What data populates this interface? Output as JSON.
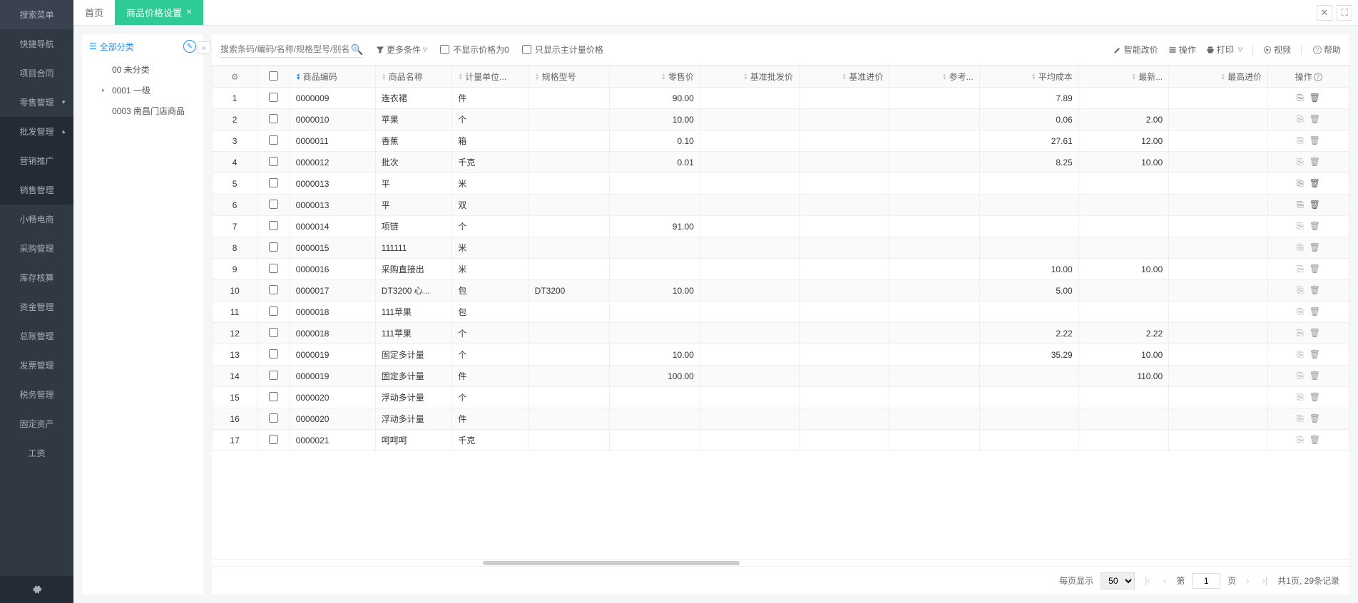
{
  "sidebar": {
    "items": [
      {
        "label": "搜索菜单",
        "caret": ""
      },
      {
        "label": "快捷导航",
        "caret": ""
      },
      {
        "label": "项目合同",
        "caret": ""
      },
      {
        "label": "零售管理",
        "caret": "▼"
      },
      {
        "label": "批发管理",
        "caret": "▲",
        "expanded": true,
        "subs": [
          {
            "label": "营销推广"
          },
          {
            "label": "销售管理"
          }
        ]
      },
      {
        "label": "小畅电商",
        "caret": ""
      },
      {
        "label": "采购管理",
        "caret": ""
      },
      {
        "label": "库存核算",
        "caret": ""
      },
      {
        "label": "资金管理",
        "caret": ""
      },
      {
        "label": "总账管理",
        "caret": ""
      },
      {
        "label": "发票管理",
        "caret": ""
      },
      {
        "label": "税务管理",
        "caret": ""
      },
      {
        "label": "固定资产",
        "caret": ""
      },
      {
        "label": "工资",
        "caret": ""
      }
    ]
  },
  "tabs": [
    {
      "label": "首页",
      "active": false
    },
    {
      "label": "商品价格设置",
      "active": true,
      "closable": true
    }
  ],
  "tree": {
    "header": "全部分类",
    "nodes": [
      {
        "label": "00 未分类",
        "caret": ""
      },
      {
        "label": "0001 一级",
        "caret": "▸"
      },
      {
        "label": "0003 南昌门店商品",
        "caret": ""
      }
    ]
  },
  "toolbar": {
    "search_placeholder": "搜索条码/编码/名称/规格型号/别名",
    "more_cond": "更多条件",
    "hide_zero": "不显示价格为0",
    "main_unit": "只显示主计量价格",
    "smart": "智能改价",
    "operate": "操作",
    "print": "打印",
    "video": "视频",
    "help": "帮助"
  },
  "columns": [
    "商品编码",
    "商品名称",
    "计量单位...",
    "规格型号",
    "零售价",
    "基准批发价",
    "基准进价",
    "参考...",
    "平均成本",
    "最新...",
    "最高进价",
    "操作"
  ],
  "rows": [
    {
      "idx": "1",
      "code": "0000009",
      "name": "连衣裙",
      "unit": "件",
      "spec": "",
      "retail": "90.00",
      "wbase": "",
      "pbase": "",
      "ref": "",
      "avg": "7.89",
      "latest": "",
      "max": "",
      "editable": true
    },
    {
      "idx": "2",
      "code": "0000010",
      "name": "苹果",
      "unit": "个",
      "spec": "",
      "retail": "10.00",
      "wbase": "",
      "pbase": "",
      "ref": "",
      "avg": "0.06",
      "latest": "2.00",
      "max": "",
      "editable": false
    },
    {
      "idx": "3",
      "code": "0000011",
      "name": "香蕉",
      "unit": "箱",
      "spec": "",
      "retail": "0.10",
      "wbase": "",
      "pbase": "",
      "ref": "",
      "avg": "27.61",
      "latest": "12.00",
      "max": "",
      "editable": false
    },
    {
      "idx": "4",
      "code": "0000012",
      "name": "批次",
      "unit": "千克",
      "spec": "",
      "retail": "0.01",
      "wbase": "",
      "pbase": "",
      "ref": "",
      "avg": "8.25",
      "latest": "10.00",
      "max": "",
      "editable": false
    },
    {
      "idx": "5",
      "code": "0000013",
      "name": "平",
      "unit": "米",
      "spec": "",
      "retail": "",
      "wbase": "",
      "pbase": "",
      "ref": "",
      "avg": "",
      "latest": "",
      "max": "",
      "editable": true
    },
    {
      "idx": "6",
      "code": "0000013",
      "name": "平",
      "unit": "双",
      "spec": "",
      "retail": "",
      "wbase": "",
      "pbase": "",
      "ref": "",
      "avg": "",
      "latest": "",
      "max": "",
      "editable": true
    },
    {
      "idx": "7",
      "code": "0000014",
      "name": "项链",
      "unit": "个",
      "spec": "",
      "retail": "91.00",
      "wbase": "",
      "pbase": "",
      "ref": "",
      "avg": "",
      "latest": "",
      "max": "",
      "editable": false
    },
    {
      "idx": "8",
      "code": "0000015",
      "name": "111111",
      "unit": "米",
      "spec": "",
      "retail": "",
      "wbase": "",
      "pbase": "",
      "ref": "",
      "avg": "",
      "latest": "",
      "max": "",
      "editable": false
    },
    {
      "idx": "9",
      "code": "0000016",
      "name": "采购直接出",
      "unit": "米",
      "spec": "",
      "retail": "",
      "wbase": "",
      "pbase": "",
      "ref": "",
      "avg": "10.00",
      "latest": "10.00",
      "max": "",
      "editable": false
    },
    {
      "idx": "10",
      "code": "0000017",
      "name": "DT3200 心...",
      "unit": "包",
      "spec": "DT3200",
      "retail": "10.00",
      "wbase": "",
      "pbase": "",
      "ref": "",
      "avg": "5.00",
      "latest": "",
      "max": "",
      "editable": false
    },
    {
      "idx": "11",
      "code": "0000018",
      "name": "111苹果",
      "unit": "包",
      "spec": "",
      "retail": "",
      "wbase": "",
      "pbase": "",
      "ref": "",
      "avg": "",
      "latest": "",
      "max": "",
      "editable": false
    },
    {
      "idx": "12",
      "code": "0000018",
      "name": "111苹果",
      "unit": "个",
      "spec": "",
      "retail": "",
      "wbase": "",
      "pbase": "",
      "ref": "",
      "avg": "2.22",
      "latest": "2.22",
      "max": "",
      "editable": false
    },
    {
      "idx": "13",
      "code": "0000019",
      "name": "固定多计量",
      "unit": "个",
      "spec": "",
      "retail": "10.00",
      "wbase": "",
      "pbase": "",
      "ref": "",
      "avg": "35.29",
      "latest": "10.00",
      "max": "",
      "editable": false
    },
    {
      "idx": "14",
      "code": "0000019",
      "name": "固定多计量",
      "unit": "件",
      "spec": "",
      "retail": "100.00",
      "wbase": "",
      "pbase": "",
      "ref": "",
      "avg": "",
      "latest": "110.00",
      "max": "",
      "editable": false
    },
    {
      "idx": "15",
      "code": "0000020",
      "name": "浮动多计量",
      "unit": "个",
      "spec": "",
      "retail": "",
      "wbase": "",
      "pbase": "",
      "ref": "",
      "avg": "",
      "latest": "",
      "max": "",
      "editable": false
    },
    {
      "idx": "16",
      "code": "0000020",
      "name": "浮动多计量",
      "unit": "件",
      "spec": "",
      "retail": "",
      "wbase": "",
      "pbase": "",
      "ref": "",
      "avg": "",
      "latest": "",
      "max": "",
      "editable": false
    },
    {
      "idx": "17",
      "code": "0000021",
      "name": "呵呵呵",
      "unit": "千克",
      "spec": "",
      "retail": "",
      "wbase": "",
      "pbase": "",
      "ref": "",
      "avg": "",
      "latest": "",
      "max": "",
      "editable": false
    }
  ],
  "pager": {
    "per_page_label": "每页显示",
    "per_page": "50",
    "page_label_pre": "第",
    "page": "1",
    "page_label_post": "页",
    "total": "共1页, 29条记录"
  },
  "colors": {
    "sidebar_bg": "#303844",
    "accent": "#2ecb94",
    "link": "#1890ff"
  }
}
